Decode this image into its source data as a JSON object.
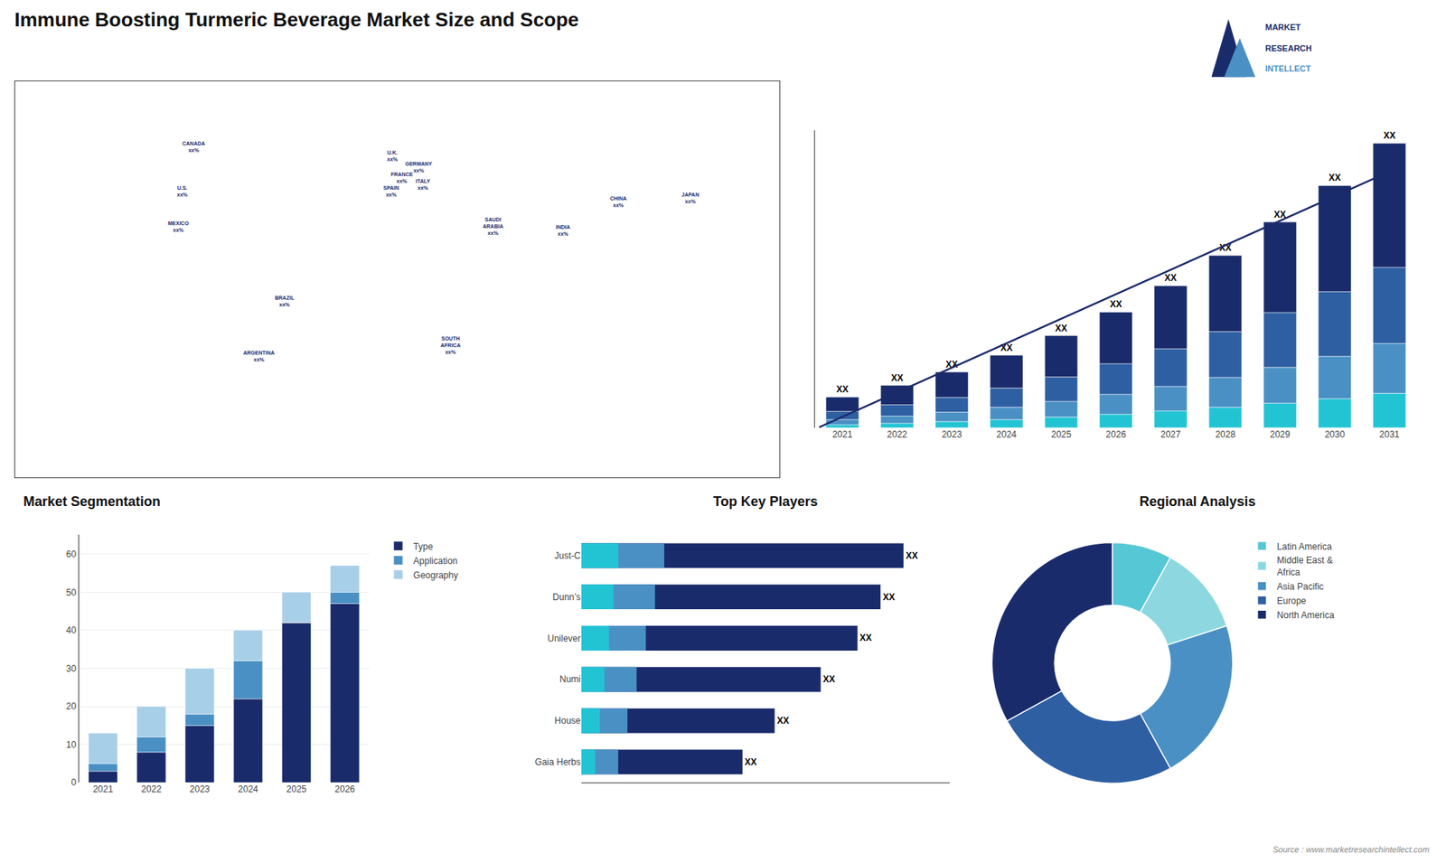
{
  "title": "Immune Boosting Turmeric Beverage Market Size and Scope",
  "logo": [
    "MARKET",
    "RESEARCH",
    "INTELLECT"
  ],
  "source": "Source : www.marketresearchintellect.com",
  "chart_data": [
    {
      "type": "map",
      "xlim": [
        -180,
        180
      ],
      "ylim": [
        -90,
        90
      ],
      "xticks": [],
      "yticks": [],
      "tick_labels": false,
      "color": "#1a2b6b",
      "annotations": [
        {
          "x": -96,
          "y": 60,
          "text": "CANADA\nxx%"
        },
        {
          "x": -101,
          "y": 40,
          "text": "U.S.\nxx%"
        },
        {
          "x": -103,
          "y": 24,
          "text": "MEXICO\nxx%"
        },
        {
          "x": -53,
          "y": -10,
          "text": "BRAZIL\nxx%"
        },
        {
          "x": -65,
          "y": -35,
          "text": "ARGENTINA\nxx%"
        },
        {
          "x": -2,
          "y": 56,
          "text": "U.K.\nxx%"
        },
        {
          "x": 2,
          "y": 46,
          "text": "FRANCE\nxx%"
        },
        {
          "x": -3,
          "y": 40,
          "text": "SPAIN\nxx%"
        },
        {
          "x": 10,
          "y": 51,
          "text": "GERMANY\nxx%"
        },
        {
          "x": 12,
          "y": 43,
          "text": "ITALY\nxx%"
        },
        {
          "x": 45,
          "y": 24,
          "text": "SAUDI\nARABIA\nxx%"
        },
        {
          "x": 25,
          "y": -30,
          "text": "SOUTH\nAFRICA\nxx%"
        },
        {
          "x": 104,
          "y": 35,
          "text": "CHINA\nxx%"
        },
        {
          "x": 138,
          "y": 37,
          "text": "JAPAN\nxx%"
        },
        {
          "x": 78,
          "y": 22,
          "text": "INDIA\nxx%"
        }
      ]
    },
    {
      "type": "bar",
      "stacked": true,
      "categories": [
        "2021",
        "2022",
        "2023",
        "2024",
        "2025",
        "2026",
        "2027",
        "2028",
        "2029",
        "2030",
        "2031"
      ],
      "series": [
        {
          "color": "#22c4d4",
          "values": [
            0.15,
            0.22,
            0.3,
            0.4,
            0.52,
            0.66,
            0.82,
            1.0,
            1.2,
            1.42,
            1.68
          ]
        },
        {
          "color": "#4a90c4",
          "values": [
            0.25,
            0.35,
            0.46,
            0.6,
            0.77,
            0.97,
            1.2,
            1.46,
            1.75,
            2.07,
            2.44
          ]
        },
        {
          "color": "#2e5fa3",
          "values": [
            0.4,
            0.55,
            0.72,
            0.94,
            1.19,
            1.5,
            1.84,
            2.24,
            2.68,
            3.16,
            3.72
          ]
        },
        {
          "color": "#1a2b6b",
          "values": [
            0.7,
            0.95,
            1.24,
            1.6,
            2.02,
            2.52,
            3.08,
            3.72,
            4.42,
            5.18,
            6.06
          ],
          "value_labels": [
            "XX",
            "XX",
            "XX",
            "XX",
            "XX",
            "XX",
            "XX",
            "XX",
            "XX",
            "XX",
            "XX"
          ]
        }
      ],
      "ylim": [
        0,
        14.518
      ],
      "yticks": [],
      "tick_labels": "x"
    },
    {
      "type": "bar",
      "title": "Market Segmentation",
      "stacked": true,
      "categories": [
        "2021",
        "2022",
        "2023",
        "2024",
        "2025",
        "2026"
      ],
      "series": [
        {
          "name": "Type",
          "color": "#1a2b6b",
          "values": [
            3,
            8,
            15,
            22,
            42,
            47
          ]
        },
        {
          "name": "Application",
          "color": "#4a90c4",
          "values": [
            2,
            4,
            3,
            10,
            0,
            3
          ]
        },
        {
          "name": "Geography",
          "color": "#a8cfe8",
          "values": [
            8,
            8,
            12,
            8,
            8,
            7
          ]
        }
      ],
      "ylim": [
        0,
        65
      ],
      "yticks": [
        0,
        10,
        20,
        30,
        40,
        50,
        60
      ],
      "grid": true,
      "legend": "right"
    },
    {
      "type": "bar",
      "title": "Top Key Players",
      "orientation": "horizontal",
      "stacked": false,
      "categories": [
        "Just-C",
        "Dunn’s",
        "Unilever",
        "Numi",
        "House",
        "Gaia Herbs"
      ],
      "series": [
        {
          "color": "#1a2b6b",
          "values": [
            70,
            65,
            60,
            52,
            42,
            35
          ],
          "value_labels": [
            "XX",
            "XX",
            "XX",
            "XX",
            "XX",
            "XX"
          ]
        },
        {
          "color": "#4a90c4",
          "values": [
            18,
            16,
            14,
            12,
            10,
            8
          ]
        },
        {
          "color": "#22c4d4",
          "values": [
            8,
            7,
            6,
            5,
            4,
            3
          ]
        }
      ],
      "xlim": [
        0,
        80
      ],
      "xticks": [],
      "tick_labels": "y"
    },
    {
      "type": "pie",
      "title": "Regional Analysis",
      "categories": [
        "Latin America",
        "Middle East &\nAfrica",
        "Asia Pacific",
        "Europe",
        "North America"
      ],
      "values": [
        8,
        12,
        22,
        25,
        33
      ],
      "colors": [
        "#56c7d4",
        "#8dd8e0",
        "#4a90c4",
        "#2e5fa3",
        "#1a2b6b"
      ],
      "legend": "right"
    }
  ]
}
